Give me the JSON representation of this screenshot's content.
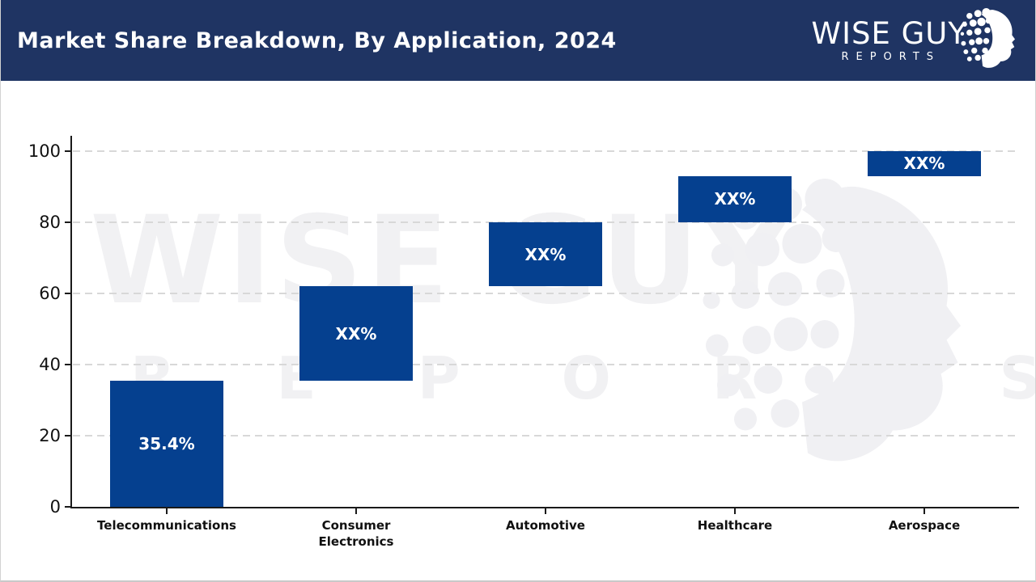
{
  "header": {
    "title": "Market Share Breakdown, By Application, 2024",
    "logo": {
      "line1": "WISE GUY",
      "line2": "REPORTS"
    }
  },
  "watermark": {
    "line1": "WISE GUY",
    "line2": "R E P O R T S"
  },
  "colors": {
    "header_bg": "#1f3463",
    "bar": "#05408f",
    "grid": "#d8d8d8",
    "axis": "#1a1a1a",
    "bar_label": "#ffffff",
    "watermark": "#f1f1f3",
    "title_text": "#ffffff"
  },
  "chart_data": {
    "type": "bar",
    "subtype": "waterfall",
    "title": "Market Share Breakdown, By Application, 2024",
    "categories": [
      "Telecommunications",
      "Consumer Electronics",
      "Automotive",
      "Healthcare",
      "Aerospace"
    ],
    "tick_labels_x": [
      "Telecommunications",
      "Consumer\nElectronics",
      "Automotive",
      "Healthcare",
      "Aerospace"
    ],
    "segments": [
      {
        "category": "Telecommunications",
        "start": 0,
        "end": 35.4,
        "label": "35.4%"
      },
      {
        "category": "Consumer Electronics",
        "start": 35.4,
        "end": 62,
        "label": "XX%"
      },
      {
        "category": "Automotive",
        "start": 62,
        "end": 80,
        "label": "XX%"
      },
      {
        "category": "Healthcare",
        "start": 80,
        "end": 93,
        "label": "XX%"
      },
      {
        "category": "Aerospace",
        "start": 93,
        "end": 100,
        "label": "XX%"
      }
    ],
    "yticks": [
      0,
      20,
      40,
      60,
      80,
      100
    ],
    "ylim": [
      0,
      104
    ],
    "xlabel": "",
    "ylabel": "",
    "grid": "dashed horizontal",
    "legend": "none"
  }
}
